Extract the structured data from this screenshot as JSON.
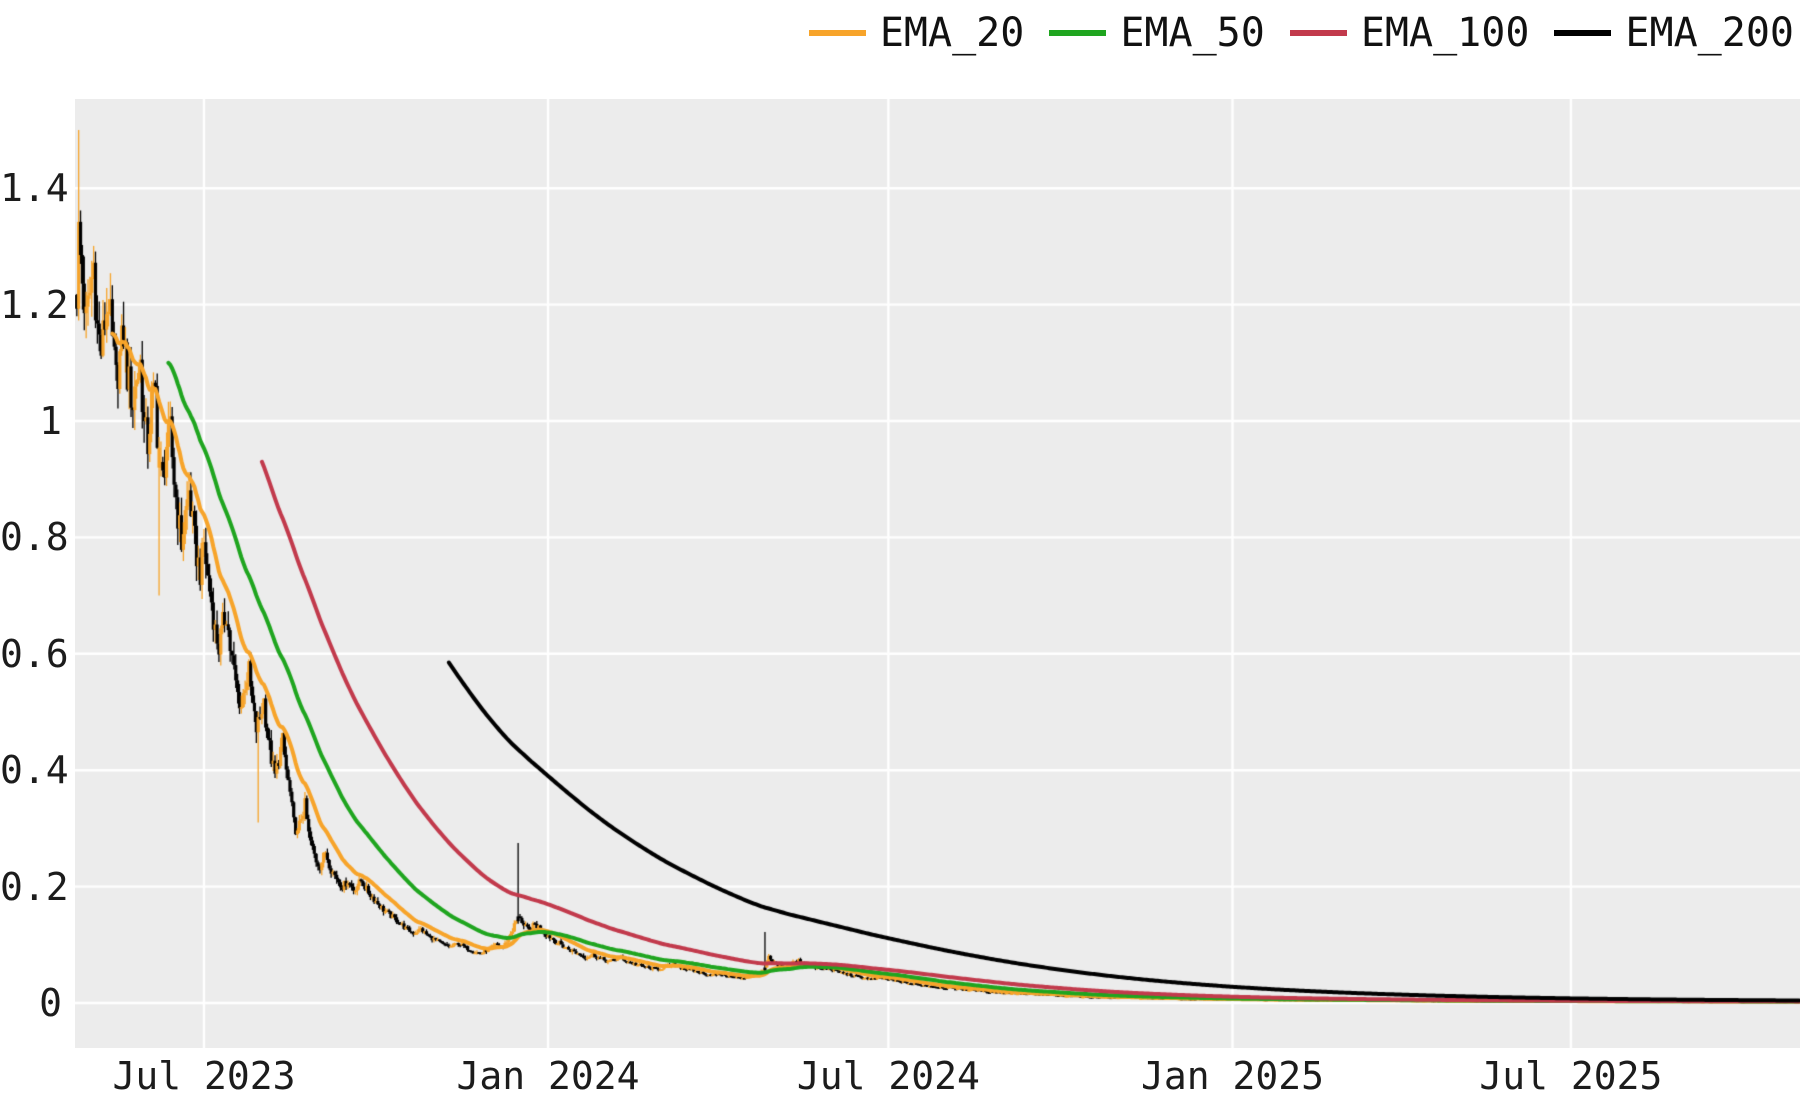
{
  "legend": {
    "items": [
      {
        "label": "EMA_20",
        "color": "#f7a42a"
      },
      {
        "label": "EMA_50",
        "color": "#1fa51f"
      },
      {
        "label": "EMA_100",
        "color": "#c23a4c"
      },
      {
        "label": "EMA_200",
        "color": "#000000"
      }
    ]
  },
  "chart_data": {
    "type": "candlestick",
    "title": "",
    "grid": true,
    "plot_bg_color": "#ececec",
    "grid_color": "#ffffff",
    "x_axis": {
      "unit": "days since first candle (2023-04-24, daily bars)",
      "range_days": [
        0,
        921
      ],
      "ticks": [
        {
          "label": "Jul 2023",
          "day": 68
        },
        {
          "label": "Jan 2024",
          "day": 252
        },
        {
          "label": "Jul 2024",
          "day": 434
        },
        {
          "label": "Jan 2025",
          "day": 618
        },
        {
          "label": "Jul 2025",
          "day": 799
        }
      ]
    },
    "y_axis": {
      "ylim": [
        -0.077,
        1.553
      ],
      "ticks": [
        {
          "label": "0",
          "value": 0
        },
        {
          "label": "0.2",
          "value": 0.2
        },
        {
          "label": "0.4",
          "value": 0.4
        },
        {
          "label": "0.6",
          "value": 0.6
        },
        {
          "label": "0.8",
          "value": 0.8
        },
        {
          "label": "1",
          "value": 1
        },
        {
          "label": "1.2",
          "value": 1.2
        },
        {
          "label": "1.4",
          "value": 1.4
        }
      ]
    },
    "candles": {
      "up_color": "#f7a42a",
      "down_color": "#000000",
      "n_days": 922,
      "close_anchors": [
        [
          0,
          1.22
        ],
        [
          1,
          1.32
        ],
        [
          3,
          1.24
        ],
        [
          5,
          1.17
        ],
        [
          7,
          1.22
        ],
        [
          9,
          1.27
        ],
        [
          11,
          1.16
        ],
        [
          13,
          1.12
        ],
        [
          15,
          1.17
        ],
        [
          17,
          1.21
        ],
        [
          19,
          1.13
        ],
        [
          21,
          1.07
        ],
        [
          23,
          1.11
        ],
        [
          25,
          1.15
        ],
        [
          27,
          1.08
        ],
        [
          30,
          1.03
        ],
        [
          32,
          1.08
        ],
        [
          34,
          1.1
        ],
        [
          36,
          0.99
        ],
        [
          38,
          0.96
        ],
        [
          40,
          1.03
        ],
        [
          42,
          1.05
        ],
        [
          44,
          0.92
        ],
        [
          46,
          0.9
        ],
        [
          48,
          0.96
        ],
        [
          50,
          0.98
        ],
        [
          52,
          0.9
        ],
        [
          54,
          0.84
        ],
        [
          56,
          0.79
        ],
        [
          58,
          0.84
        ],
        [
          60,
          0.88
        ],
        [
          62,
          0.82
        ],
        [
          64,
          0.77
        ],
        [
          66,
          0.74
        ],
        [
          68,
          0.79
        ],
        [
          70,
          0.73
        ],
        [
          72,
          0.69
        ],
        [
          74,
          0.64
        ],
        [
          76,
          0.61
        ],
        [
          78,
          0.65
        ],
        [
          80,
          0.67
        ],
        [
          82,
          0.61
        ],
        [
          84,
          0.57
        ],
        [
          86,
          0.53
        ],
        [
          88,
          0.51
        ],
        [
          90,
          0.55
        ],
        [
          92,
          0.57
        ],
        [
          94,
          0.51
        ],
        [
          96,
          0.47
        ],
        [
          98,
          0.49
        ],
        [
          100,
          0.52
        ],
        [
          102,
          0.46
        ],
        [
          104,
          0.42
        ],
        [
          106,
          0.39
        ],
        [
          108,
          0.42
        ],
        [
          110,
          0.45
        ],
        [
          112,
          0.4
        ],
        [
          114,
          0.36
        ],
        [
          116,
          0.31
        ],
        [
          118,
          0.29
        ],
        [
          120,
          0.32
        ],
        [
          122,
          0.34
        ],
        [
          124,
          0.29
        ],
        [
          126,
          0.265
        ],
        [
          128,
          0.245
        ],
        [
          130,
          0.235
        ],
        [
          133,
          0.26
        ],
        [
          136,
          0.23
        ],
        [
          139,
          0.215
        ],
        [
          142,
          0.2
        ],
        [
          145,
          0.21
        ],
        [
          148,
          0.195
        ],
        [
          152,
          0.21
        ],
        [
          156,
          0.19
        ],
        [
          160,
          0.175
        ],
        [
          164,
          0.16
        ],
        [
          168,
          0.15
        ],
        [
          172,
          0.14
        ],
        [
          176,
          0.128
        ],
        [
          180,
          0.12
        ],
        [
          184,
          0.127
        ],
        [
          188,
          0.115
        ],
        [
          192,
          0.108
        ],
        [
          196,
          0.1
        ],
        [
          200,
          0.097
        ],
        [
          204,
          0.103
        ],
        [
          208,
          0.095
        ],
        [
          212,
          0.089
        ],
        [
          216,
          0.085
        ],
        [
          220,
          0.092
        ],
        [
          224,
          0.1
        ],
        [
          228,
          0.096
        ],
        [
          232,
          0.12
        ],
        [
          235,
          0.14
        ],
        [
          237,
          0.15
        ],
        [
          239,
          0.132
        ],
        [
          242,
          0.123
        ],
        [
          245,
          0.135
        ],
        [
          248,
          0.128
        ],
        [
          251,
          0.118
        ],
        [
          254,
          0.112
        ],
        [
          257,
          0.104
        ],
        [
          260,
          0.098
        ],
        [
          264,
          0.091
        ],
        [
          268,
          0.085
        ],
        [
          272,
          0.079
        ],
        [
          276,
          0.083
        ],
        [
          280,
          0.076
        ],
        [
          285,
          0.071
        ],
        [
          290,
          0.078
        ],
        [
          295,
          0.071
        ],
        [
          300,
          0.065
        ],
        [
          305,
          0.061
        ],
        [
          310,
          0.058
        ],
        [
          315,
          0.062
        ],
        [
          320,
          0.066
        ],
        [
          325,
          0.059
        ],
        [
          330,
          0.055
        ],
        [
          335,
          0.051
        ],
        [
          340,
          0.048
        ],
        [
          345,
          0.05
        ],
        [
          350,
          0.045
        ],
        [
          355,
          0.043
        ],
        [
          360,
          0.046
        ],
        [
          365,
          0.049
        ],
        [
          368,
          0.06
        ],
        [
          370,
          0.078
        ],
        [
          372,
          0.07
        ],
        [
          375,
          0.064
        ],
        [
          378,
          0.061
        ],
        [
          382,
          0.069
        ],
        [
          386,
          0.073
        ],
        [
          390,
          0.068
        ],
        [
          394,
          0.062
        ],
        [
          398,
          0.058
        ],
        [
          402,
          0.06
        ],
        [
          406,
          0.055
        ],
        [
          410,
          0.051
        ],
        [
          415,
          0.047
        ],
        [
          420,
          0.044
        ],
        [
          425,
          0.041
        ],
        [
          430,
          0.043
        ],
        [
          435,
          0.04
        ],
        [
          440,
          0.037
        ],
        [
          445,
          0.034
        ],
        [
          450,
          0.032
        ],
        [
          460,
          0.028
        ],
        [
          470,
          0.025
        ],
        [
          480,
          0.022
        ],
        [
          490,
          0.019
        ],
        [
          500,
          0.017
        ],
        [
          510,
          0.0155
        ],
        [
          520,
          0.014
        ],
        [
          530,
          0.0125
        ],
        [
          540,
          0.011
        ],
        [
          550,
          0.01
        ],
        [
          560,
          0.0095
        ],
        [
          575,
          0.0085
        ],
        [
          590,
          0.0075
        ],
        [
          605,
          0.007
        ],
        [
          618,
          0.0065
        ],
        [
          635,
          0.006
        ],
        [
          655,
          0.0055
        ],
        [
          675,
          0.005
        ],
        [
          700,
          0.0045
        ],
        [
          725,
          0.004
        ],
        [
          750,
          0.0037
        ],
        [
          775,
          0.0034
        ],
        [
          799,
          0.0032
        ],
        [
          825,
          0.003
        ],
        [
          850,
          0.0028
        ],
        [
          875,
          0.0027
        ],
        [
          900,
          0.0026
        ],
        [
          921,
          0.0025
        ]
      ],
      "wick_spikes": [
        {
          "day": 1,
          "kind": "high",
          "value": 1.5,
          "up": true
        },
        {
          "day": 44,
          "kind": "low",
          "value": 0.7,
          "up": true
        },
        {
          "day": 97,
          "kind": "low",
          "value": 0.31,
          "up": true
        },
        {
          "day": 236,
          "kind": "high",
          "value": 0.275,
          "up": false
        },
        {
          "day": 368,
          "kind": "high",
          "value": 0.122,
          "up": false
        }
      ]
    },
    "series": [
      {
        "name": "EMA_20",
        "period": 20,
        "color": "#f7a42a",
        "start_day": 19,
        "start_value": 1.15
      },
      {
        "name": "EMA_50",
        "period": 50,
        "color": "#1fa51f",
        "start_day": 49,
        "start_value": 1.1
      },
      {
        "name": "EMA_100",
        "period": 100,
        "color": "#c23a4c",
        "start_day": 99,
        "start_value": 0.93
      },
      {
        "name": "EMA_200",
        "period": 200,
        "color": "#000000",
        "start_day": 199,
        "start_value": 0.585
      }
    ],
    "legend_position": "top-right-outside"
  }
}
